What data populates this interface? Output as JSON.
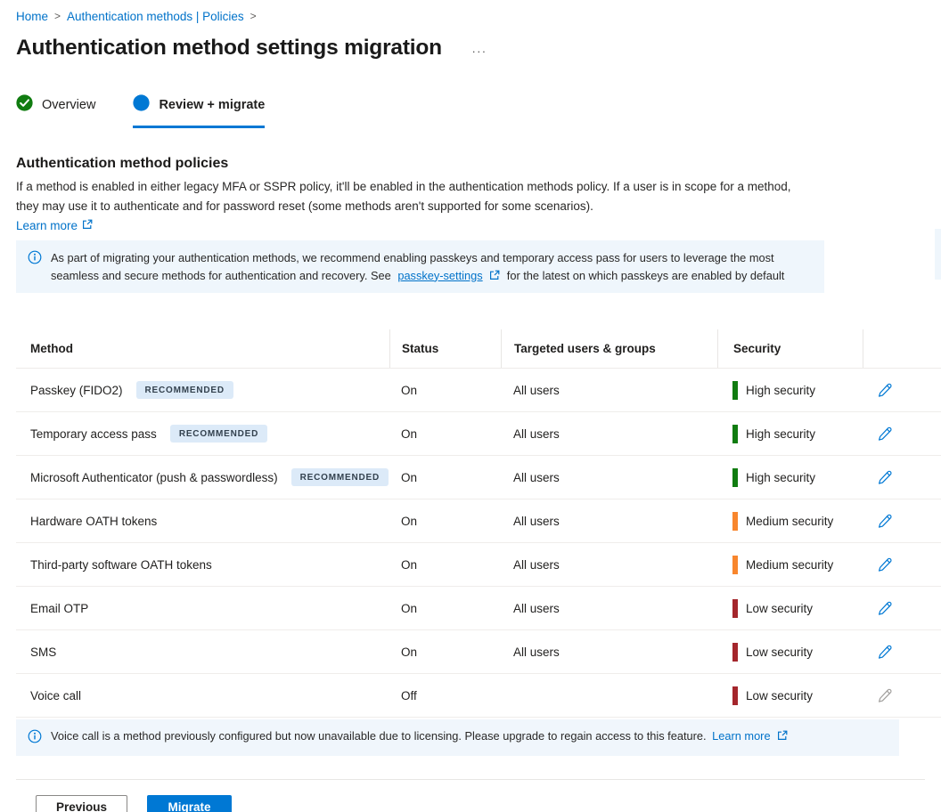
{
  "breadcrumb": {
    "separator": ">",
    "items": [
      {
        "label": "Home"
      },
      {
        "label": "Authentication methods | Policies"
      }
    ]
  },
  "page": {
    "title": "Authentication method settings migration",
    "more_label": "..."
  },
  "tabs": [
    {
      "label": "Overview",
      "state": "complete"
    },
    {
      "label": "Review + migrate",
      "state": "active"
    }
  ],
  "section": {
    "heading": "Authentication method policies",
    "description": "If a method is enabled in either legacy MFA or SSPR policy, it'll be enabled in the authentication methods policy. If a user is in scope for a method, they may use it to authenticate and for password reset (some methods aren't supported for some scenarios).",
    "learn_more_label": "Learn more"
  },
  "info_banner": {
    "text_before_link": "As part of migrating your authentication methods, we recommend enabling passkeys and temporary access pass for users to leverage the most seamless and secure methods for authentication and recovery. See",
    "link_label": "passkey-settings",
    "text_after_link": "for the latest on which passkeys are enabled by default"
  },
  "table": {
    "columns": [
      "Method",
      "Status",
      "Targeted users & groups",
      "Security"
    ],
    "rows": [
      {
        "method": "Passkey (FIDO2)",
        "badge": "RECOMMENDED",
        "status": "On",
        "targeted": "All users",
        "security": "High security",
        "security_color": "green",
        "editable": true
      },
      {
        "method": "Temporary access pass",
        "badge": "RECOMMENDED",
        "status": "On",
        "targeted": "All users",
        "security": "High security",
        "security_color": "green",
        "editable": true
      },
      {
        "method": "Microsoft Authenticator (push & passwordless)",
        "badge": "RECOMMENDED",
        "status": "On",
        "targeted": "All users",
        "security": "High security",
        "security_color": "green",
        "editable": true
      },
      {
        "method": "Hardware OATH tokens",
        "badge": null,
        "status": "On",
        "targeted": "All users",
        "security": "Medium security",
        "security_color": "orange",
        "editable": true
      },
      {
        "method": "Third-party software OATH tokens",
        "badge": null,
        "status": "On",
        "targeted": "All users",
        "security": "Medium security",
        "security_color": "orange",
        "editable": true
      },
      {
        "method": "Email OTP",
        "badge": null,
        "status": "On",
        "targeted": "All users",
        "security": "Low security",
        "security_color": "red",
        "editable": true
      },
      {
        "method": "SMS",
        "badge": null,
        "status": "On",
        "targeted": "All users",
        "security": "Low security",
        "security_color": "red",
        "editable": true
      },
      {
        "method": "Voice call",
        "badge": null,
        "status": "Off",
        "targeted": "",
        "security": "Low security",
        "security_color": "red",
        "editable": false
      }
    ]
  },
  "voice_banner": {
    "text": "Voice call is a method previously configured but now unavailable due to licensing. Please upgrade to regain access to this feature.",
    "link_label": "Learn more"
  },
  "footer": {
    "previous_label": "Previous",
    "migrate_label": "Migrate"
  },
  "colors": {
    "accent": "#0078D4",
    "link": "#0072C9",
    "green": "#107C10",
    "orange": "#F8862D",
    "red": "#A4262C",
    "badge_bg": "#DCEAF8",
    "banner_bg": "#EFF6FC",
    "disabled_icon": "#A19F9D"
  }
}
